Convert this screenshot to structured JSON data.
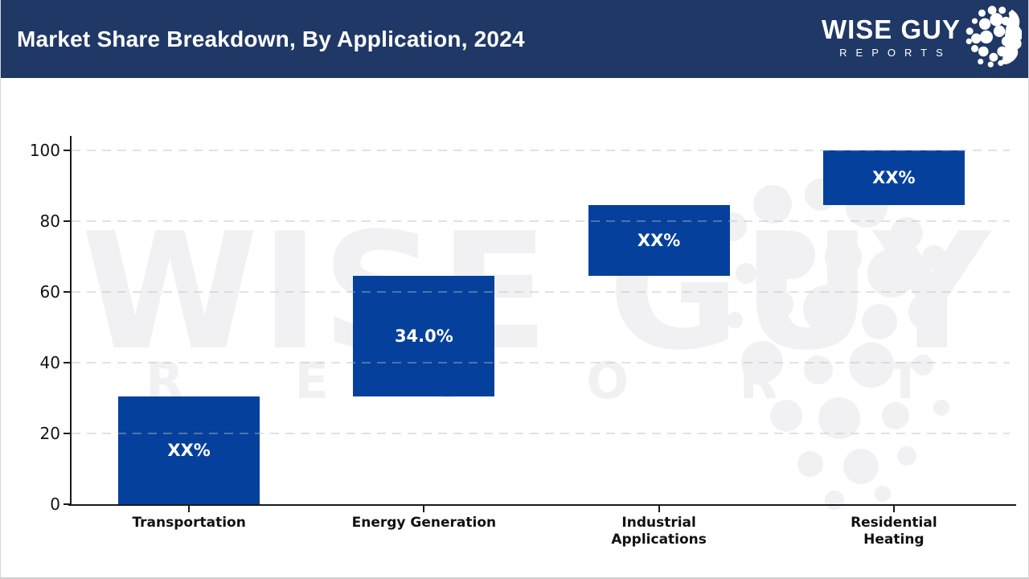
{
  "header": {
    "title": "Market Share Breakdown, By Application, 2024",
    "logo": {
      "line1": "WISE GUY",
      "line2": "REPORTS"
    }
  },
  "watermark": {
    "line1": "WISE GUY",
    "line2": "R E P O R T S"
  },
  "chart_data": {
    "type": "bar",
    "variant": "floating-waterfall",
    "title": "Market Share Breakdown, By Application, 2024",
    "categories": [
      "Transportation",
      "Energy Generation",
      "Industrial Applications",
      "Residential Heating"
    ],
    "category_lines": [
      [
        "Transportation"
      ],
      [
        "Energy Generation"
      ],
      [
        "Industrial",
        "Applications"
      ],
      [
        "Residential",
        "Heating"
      ]
    ],
    "segments": [
      {
        "category": "Transportation",
        "start": 0,
        "end": 30.5,
        "value_label": "XX%"
      },
      {
        "category": "Energy Generation",
        "start": 30.5,
        "end": 64.5,
        "value_label": "34.0%"
      },
      {
        "category": "Industrial Applications",
        "start": 64.5,
        "end": 84.5,
        "value_label": "XX%"
      },
      {
        "category": "Residential Heating",
        "start": 84.5,
        "end": 100,
        "value_label": "XX%"
      }
    ],
    "y_ticks": [
      0,
      20,
      40,
      60,
      80,
      100
    ],
    "ylim": [
      0,
      104
    ],
    "grid": {
      "horizontal": true,
      "style": "dashed",
      "over_bars": true
    },
    "legend": "none",
    "colors": {
      "bar": "#05419C",
      "header_bg": "#1F3866",
      "axis": "#1A1A1A",
      "grid": "#E3E3E3",
      "bar_label": "#FFFFFF",
      "watermark": "#F1F1F4"
    }
  }
}
